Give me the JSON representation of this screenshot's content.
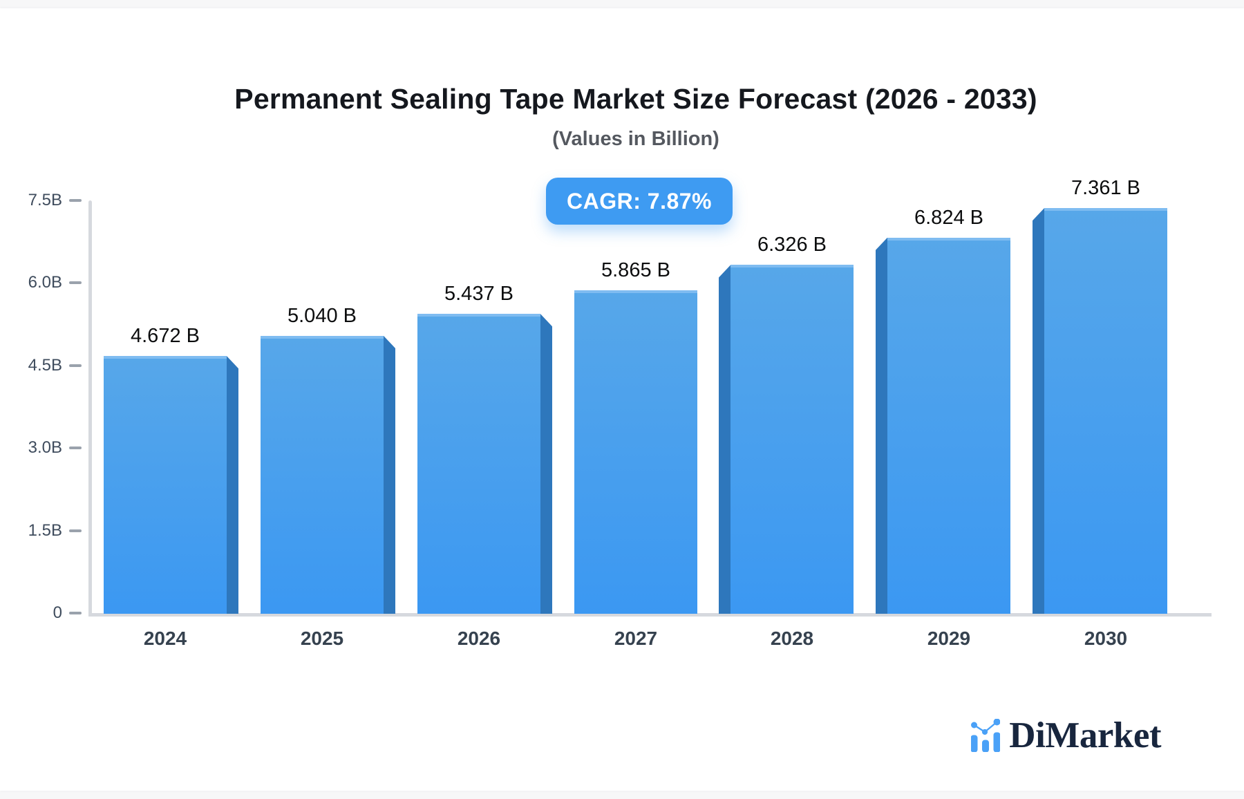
{
  "page": {
    "background": "#f7f7f8",
    "card_background": "#ffffff"
  },
  "header": {
    "title": "Permanent Sealing Tape Market Size Forecast (2026 - 2033)",
    "subtitle": "(Values in Billion)"
  },
  "badge": {
    "label": "CAGR: 7.87%",
    "background": "#3e9bf2",
    "text_color": "#ffffff"
  },
  "chart_data": {
    "type": "bar",
    "title": "Permanent Sealing Tape Market Size Forecast (2026 - 2033)",
    "subtitle": "(Values in Billion)",
    "categories": [
      "2024",
      "2025",
      "2026",
      "2027",
      "2028",
      "2029",
      "2030"
    ],
    "values": [
      4.672,
      5.04,
      5.437,
      5.865,
      6.326,
      6.824,
      7.361
    ],
    "value_labels": [
      "4.672 B",
      "5.040 B",
      "5.437 B",
      "5.865 B",
      "6.326 B",
      "6.824 B",
      "7.361 B"
    ],
    "xlabel": "",
    "ylabel": "",
    "ylim": [
      0,
      7.5
    ],
    "y_ticks": {
      "labels": [
        "7.5B",
        "6.0B",
        "4.5B",
        "3.0B",
        "1.5B",
        "0"
      ],
      "values": [
        7.5,
        6.0,
        4.5,
        3.0,
        1.5,
        0
      ]
    },
    "grid": false,
    "legend": false,
    "colors": {
      "bar_face_top": "#57a7e9",
      "bar_face_bottom": "#3b98f2",
      "bar_top_edge": "#7fbcf1",
      "bar_side": "#2e77bc",
      "axis_line": "#d6d9de",
      "tick_dash": "#9aa2ac",
      "y_tick_label": "#3f4c5d",
      "category_label": "#36424f",
      "value_label": "#0c0d0e"
    }
  },
  "logo": {
    "text": "DiMarket",
    "icon": "bar-chart-with-trendline-icon",
    "icon_color": "#4aa1f7",
    "text_color": "#18263e"
  }
}
